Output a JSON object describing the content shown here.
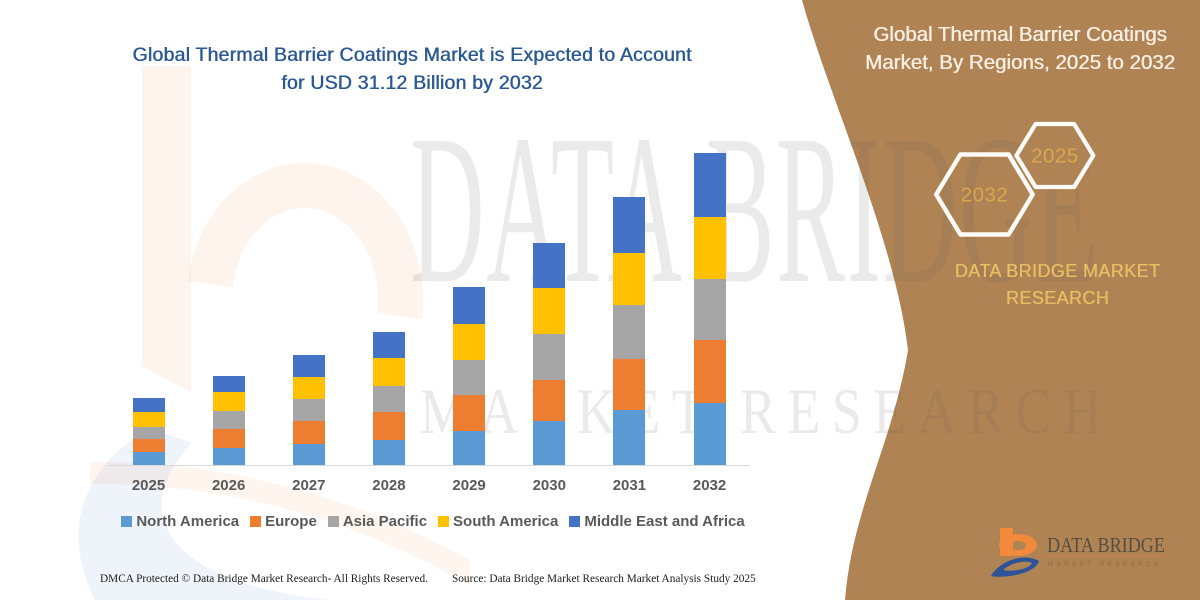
{
  "title": {
    "line1": "Global Thermal Barrier Coatings Market is Expected to Account",
    "line2": "for USD 31.12 Billion by 2032",
    "color": "#2A5892"
  },
  "chart_data": {
    "type": "bar",
    "stacked": true,
    "categories": [
      "2025",
      "2026",
      "2027",
      "2028",
      "2029",
      "2030",
      "2031",
      "2032"
    ],
    "series": [
      {
        "name": "North America",
        "color": "#5B9BD5",
        "values": [
          1.28,
          1.66,
          2.06,
          2.51,
          3.43,
          4.37,
          5.46,
          6.2
        ]
      },
      {
        "name": "Europe",
        "color": "#ED7D31",
        "values": [
          1.27,
          1.93,
          2.34,
          2.79,
          3.57,
          4.08,
          5.07,
          6.3
        ]
      },
      {
        "name": "Asia Pacific",
        "color": "#A5A5A5",
        "values": [
          1.27,
          1.8,
          2.21,
          2.56,
          3.5,
          4.61,
          5.41,
          6.08
        ]
      },
      {
        "name": "South America",
        "color": "#FFC000",
        "values": [
          1.5,
          1.87,
          2.21,
          2.79,
          3.57,
          4.57,
          5.22,
          6.19
        ]
      },
      {
        "name": "Middle East and Africa",
        "color": "#4472C4",
        "values": [
          1.34,
          1.57,
          2.19,
          2.58,
          3.7,
          4.5,
          5.56,
          6.35
        ]
      }
    ],
    "title": "Global Thermal Barrier Coatings Market is Expected to Account for USD 31.12 Billion by 2032",
    "xlabel": "",
    "ylabel": "",
    "unit": "USD Billion",
    "legend_position": "bottom",
    "grid": false,
    "axis_color": "#d9d9d9",
    "label_color": "#595959"
  },
  "side_panel": {
    "bg_color": "#B08354",
    "heading_line1": "Global Thermal Barrier Coatings",
    "heading_line2": "Market, By Regions, 2025 to 2032",
    "heading_color": "#F6EEE2",
    "hex_back_label": "2032",
    "hex_front_label": "2025",
    "hex_label_color": "#D9A74C",
    "brand_line1": "DATA BRIDGE MARKET",
    "brand_line2": "RESEARCH",
    "brand_color": "#E9BE62"
  },
  "watermark": {
    "row1": "DATA BRIDGE",
    "row2": "MARKET RESEARCH"
  },
  "footer": {
    "dmca": "DMCA Protected © Data Bridge Market Research-  All Rights Reserved.",
    "source": "Source: Data Bridge Market Research  Market Analysis Study 2025"
  },
  "logo": {
    "wordmark": "DATA BRIDGE",
    "subtext": "MARKET RESEARCH"
  }
}
